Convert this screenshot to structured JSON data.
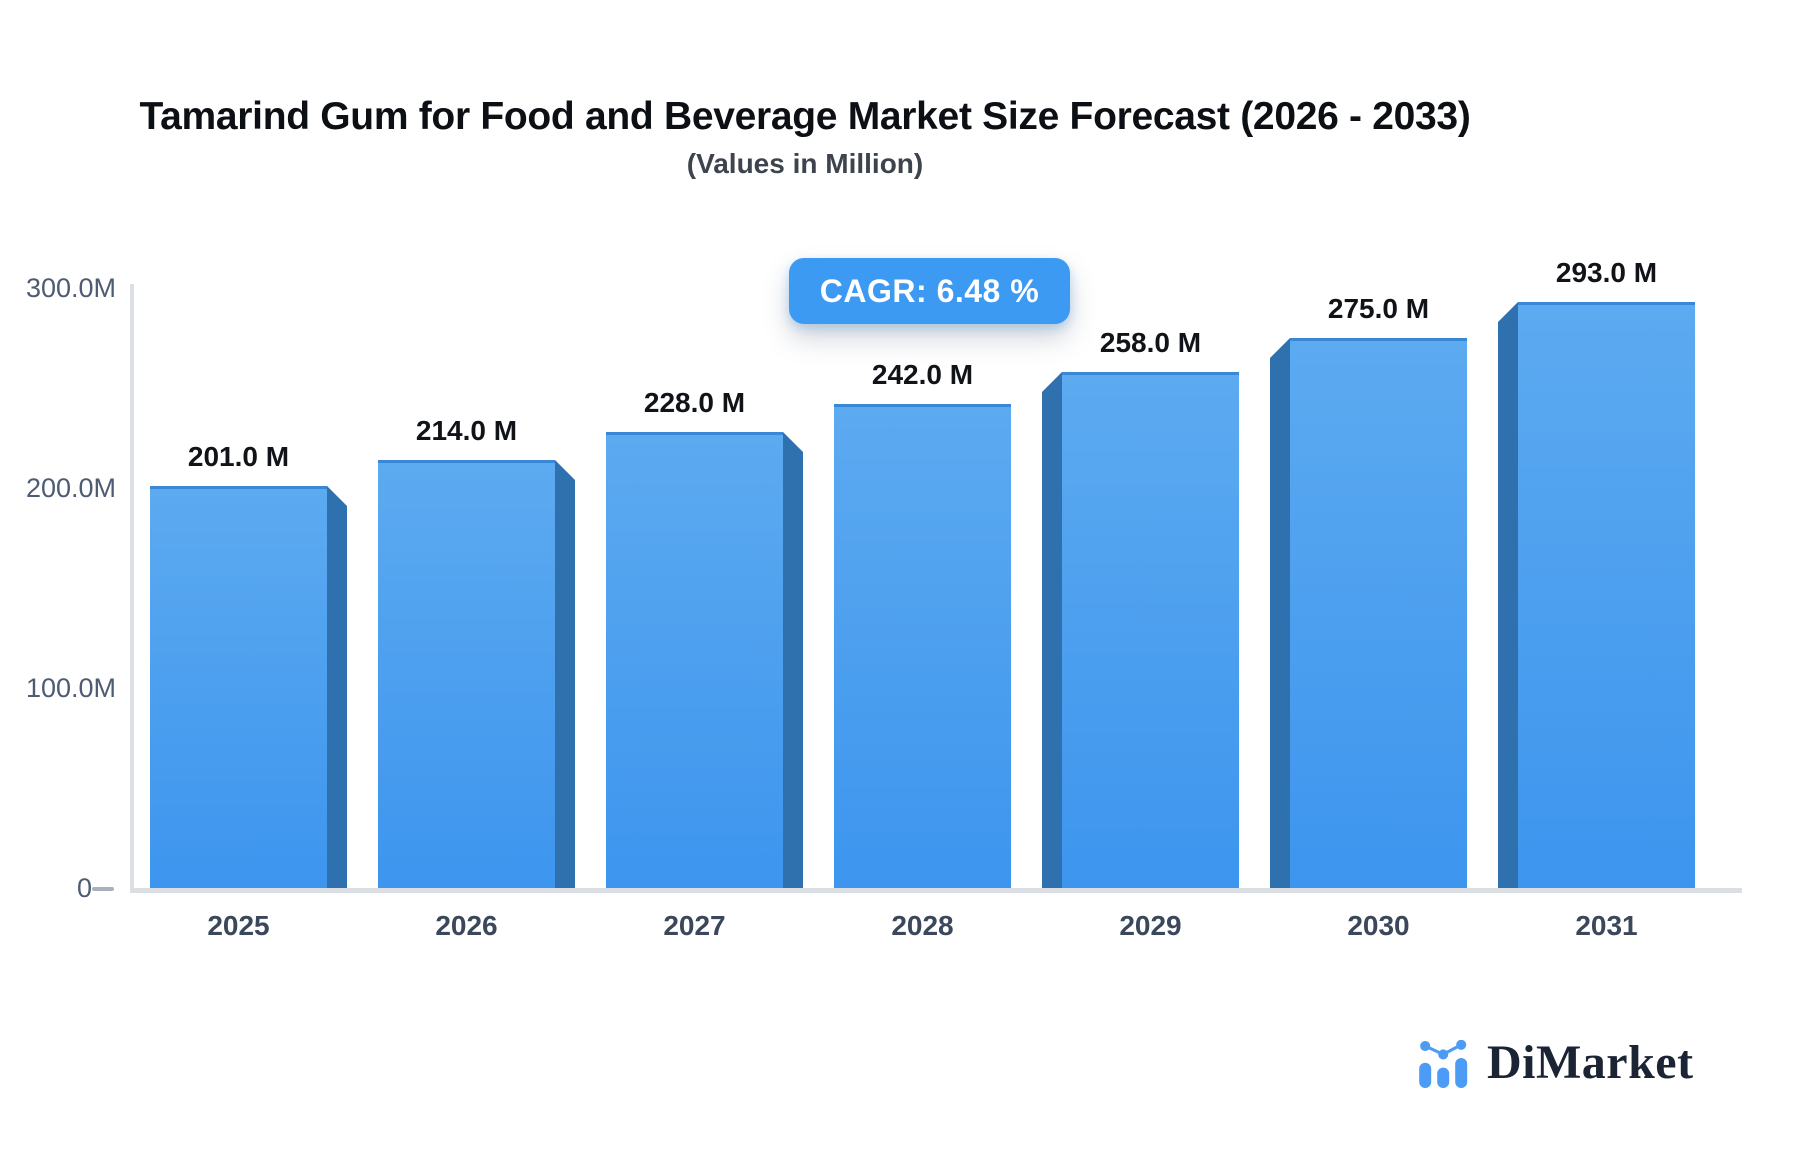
{
  "title": "Tamarind Gum for Food and Beverage Market Size Forecast (2026 - 2033)",
  "subtitle": "(Values in Million)",
  "cagr_badge": "CAGR: 6.48 %",
  "logo": {
    "text": "DiMarket"
  },
  "chart_data": {
    "type": "bar",
    "title": "Tamarind Gum for Food and Beverage Market Size Forecast (2026 - 2033)",
    "subtitle": "(Values in Million)",
    "cagr_percent": 6.48,
    "categories": [
      "2025",
      "2026",
      "2027",
      "2028",
      "2029",
      "2030",
      "2031"
    ],
    "values": [
      201.0,
      214.0,
      228.0,
      242.0,
      258.0,
      275.0,
      293.0
    ],
    "value_labels": [
      "201.0 M",
      "214.0 M",
      "228.0 M",
      "242.0 M",
      "258.0 M",
      "275.0 M",
      "293.0 M"
    ],
    "unit": "Million",
    "ylim": [
      0,
      300
    ],
    "y_ticks": [
      {
        "value": 300,
        "label": "300.0M"
      },
      {
        "value": 200,
        "label": "200.0M"
      },
      {
        "value": 100,
        "label": "100.0M"
      },
      {
        "value": 0,
        "label": "0"
      }
    ],
    "grid": "off",
    "legend": "none",
    "colors": {
      "bar_face_top": "#5caaf0",
      "bar_face_bottom": "#3d95ee",
      "bar_face_border": "#3a87d6",
      "bar_side": "#2f70af",
      "badge_bg": "#3d9af2",
      "badge_text": "#ffffff",
      "axis_line": "#dbdfe4",
      "y_label": "#4d5b73",
      "x_label": "#3b485b",
      "value_label": "#101317",
      "title": "#0c0f14",
      "subtitle": "#3e444d",
      "logo_blue": "#4c9bf5",
      "logo_text": "#1b2434"
    }
  }
}
